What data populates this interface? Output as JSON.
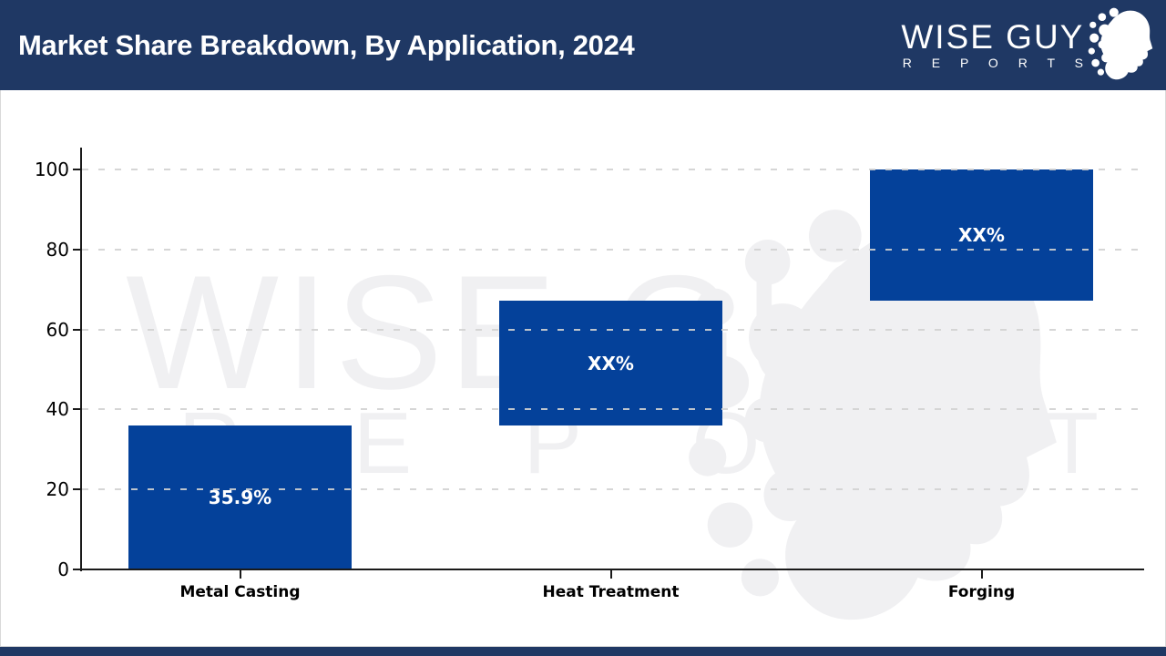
{
  "header": {
    "title": "Market Share Breakdown, By Application, 2024",
    "bg_color": "#1f3864",
    "logo": {
      "line1": "WISE GUY",
      "line2": "R E P O R T S"
    }
  },
  "watermark": {
    "line1": "WISE GUY",
    "line2": "R E P O R T S"
  },
  "footer": {
    "bg_color": "#1f3864"
  },
  "chart_data": {
    "type": "bar",
    "subtype": "floating-waterfall",
    "title": "",
    "xlabel": "",
    "ylabel": "",
    "categories": [
      "Metal Casting",
      "Heat Treatment",
      "Forging"
    ],
    "segments": [
      {
        "category": "Metal Casting",
        "start": 0,
        "end": 35.9,
        "label": "35.9%"
      },
      {
        "category": "Heat Treatment",
        "start": 35.9,
        "end": 67.2,
        "label": "XX%"
      },
      {
        "category": "Forging",
        "start": 67.2,
        "end": 100,
        "label": "XX%"
      }
    ],
    "y_ticks": [
      0,
      20,
      40,
      60,
      80,
      100
    ],
    "ylim": [
      0,
      105
    ],
    "bar_color": "#04419a",
    "grid": "dashed horizontal, drawn over bars",
    "gridline_color": "#d2d2d2",
    "axis_color": "#1a1a1a",
    "legend": "none"
  }
}
